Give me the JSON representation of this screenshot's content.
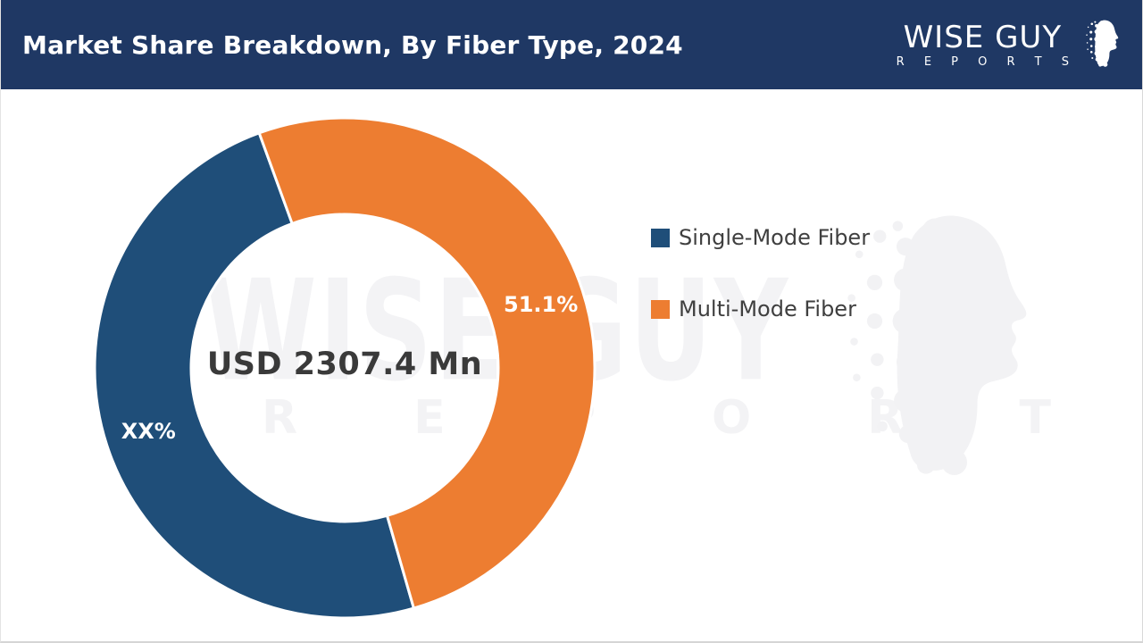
{
  "header": {
    "title": "Market Share Breakdown, By Fiber Type, 2024",
    "bg_color": "#1f3864",
    "logo": {
      "line1": "WISE GUY",
      "line2": "R E P O R T S"
    }
  },
  "watermark": {
    "line1": "WISE GUY",
    "line2": "R E P O R T S"
  },
  "chart_data": {
    "type": "pie",
    "donut": true,
    "title": "Market Share Breakdown, By Fiber Type, 2024",
    "center_label": "USD 2307.4 Mn",
    "categories": [
      "Single-Mode Fiber",
      "Multi-Mode Fiber"
    ],
    "values": [
      48.9,
      51.1
    ],
    "slice_labels": [
      "XX%",
      "51.1%"
    ],
    "colors": [
      "#1f4e79",
      "#ed7d31"
    ],
    "start_angle_deg": 110,
    "direction": "counterclockwise",
    "legend_position": "right",
    "slice_gap_color": "#ffffff"
  }
}
